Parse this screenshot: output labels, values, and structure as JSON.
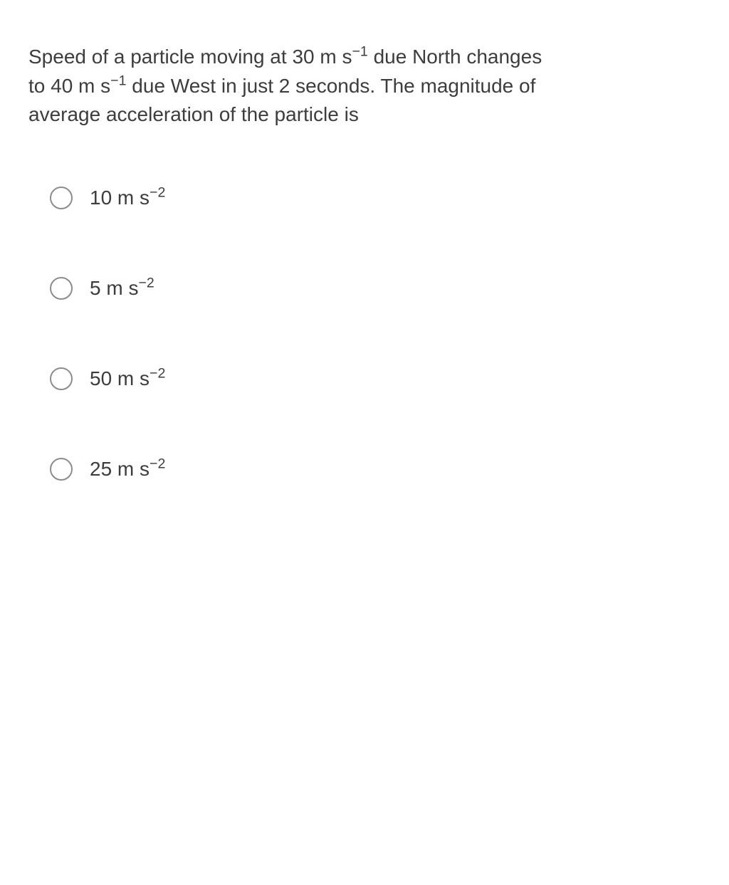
{
  "question": {
    "line1_part1": "Speed of a particle moving at 30 m s",
    "line1_sup": "−1",
    "line1_part2": " due North changes",
    "line2_part1": "to 40 m s",
    "line2_sup": "−1",
    "line2_part2": " due West in just 2 seconds. The magnitude of",
    "line3": "average acceleration of the particle is"
  },
  "options": [
    {
      "value": "10 m s",
      "sup": "−2"
    },
    {
      "value": "5 m s",
      "sup": "−2"
    },
    {
      "value": "50 m s",
      "sup": "−2"
    },
    {
      "value": "25 m s",
      "sup": "−2"
    }
  ],
  "styling": {
    "text_color": "#3c3d3e",
    "radio_border_color": "#8a8d8f",
    "background_color": "#ffffff",
    "font_size": 28,
    "superscript_scale": 0.7
  }
}
